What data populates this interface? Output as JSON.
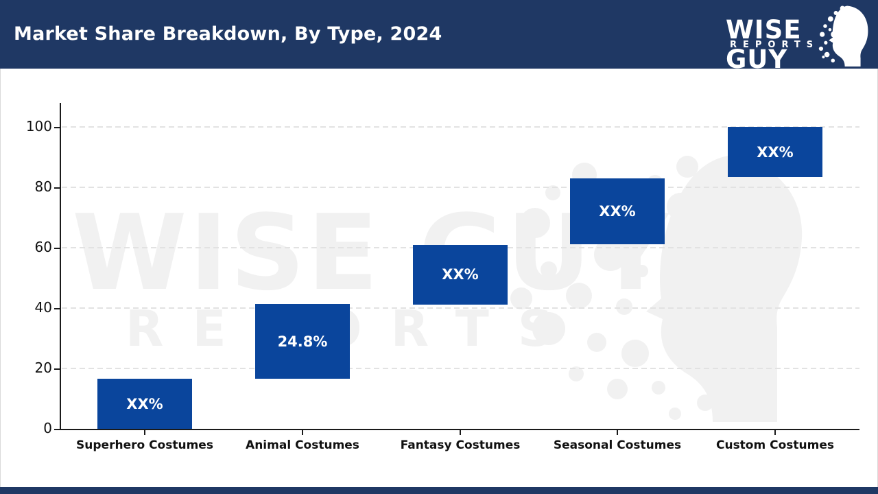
{
  "header": {
    "title": "Market Share Breakdown, By Type, 2024",
    "logo": {
      "name": "WISE GUY",
      "subname": "REPORTS"
    }
  },
  "watermark": {
    "line1": "WISE GUY",
    "line2": "REPORTS"
  },
  "chart_data": {
    "type": "bar",
    "subtype": "waterfall-floating-bars",
    "title": "Market Share Breakdown, By Type, 2024",
    "categories": [
      "Superhero Costumes",
      "Animal Costumes",
      "Fantasy Costumes",
      "Seasonal Costumes",
      "Custom Costumes"
    ],
    "bars": [
      {
        "category": "Superhero Costumes",
        "start": 0,
        "end": 16.5,
        "label": "XX%"
      },
      {
        "category": "Animal Costumes",
        "start": 16.5,
        "end": 41.3,
        "label": "24.8%"
      },
      {
        "category": "Fantasy Costumes",
        "start": 41.2,
        "end": 61,
        "label": "XX%"
      },
      {
        "category": "Seasonal Costumes",
        "start": 61.2,
        "end": 83,
        "label": "XX%"
      },
      {
        "category": "Custom Costumes",
        "start": 83.3,
        "end": 100,
        "label": "XX%"
      }
    ],
    "ylim": [
      0,
      100
    ],
    "yticks": [
      0,
      20,
      40,
      60,
      80,
      100
    ],
    "grid": "horizontal-dashed",
    "legend": "none",
    "xlabel": "",
    "ylabel": ""
  },
  "colors": {
    "header_bg": "#1f3864",
    "footer_bg": "#1f3864",
    "bar": "#0a459c",
    "bar_label": "#ffffff",
    "axis": "#1a1a1a",
    "grid": "#e2e2e2",
    "watermark": "#f1f1f1"
  }
}
